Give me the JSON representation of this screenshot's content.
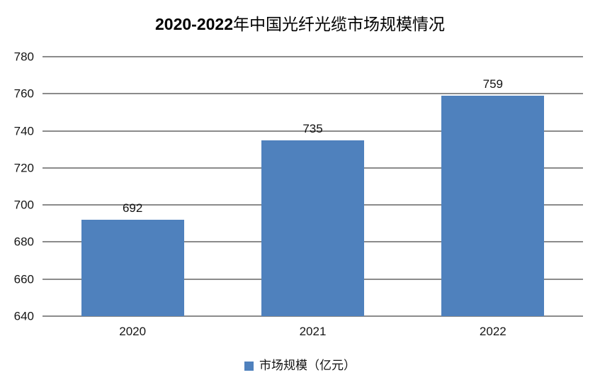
{
  "chart_data": {
    "type": "bar",
    "title": "2020-2022年中国光纤光缆市场规模情况",
    "title_prefix": "2020-2022",
    "title_suffix": "年中国光纤光缆市场规模情况",
    "categories": [
      "2020",
      "2021",
      "2022"
    ],
    "series": [
      {
        "name": "市场规模（亿元）",
        "values": [
          692,
          735,
          759
        ]
      }
    ],
    "xlabel": "",
    "ylabel": "",
    "ylim": [
      640,
      780
    ],
    "yticks": [
      640,
      660,
      680,
      700,
      720,
      740,
      760,
      780
    ],
    "grid": true,
    "legend_position": "bottom",
    "bar_color": "#4F81BD",
    "gridline_color": "#8B8B8B",
    "text_color": "#000000"
  }
}
